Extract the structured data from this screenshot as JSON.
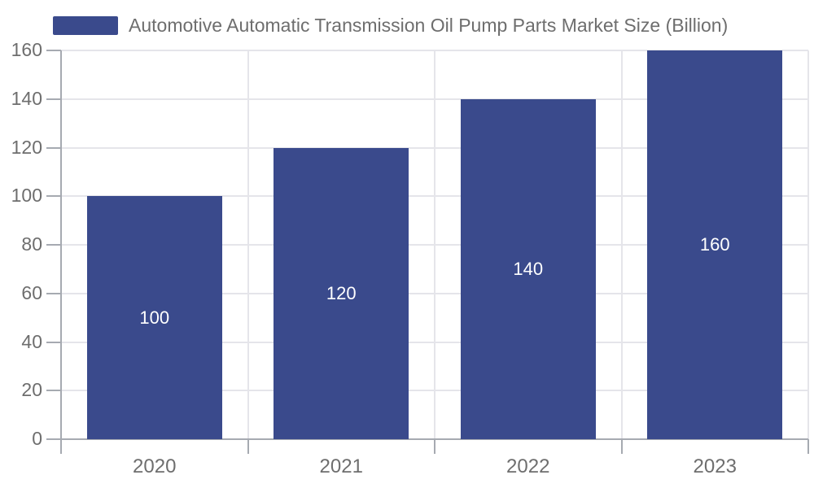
{
  "chart_data": {
    "type": "bar",
    "title": "",
    "categories": [
      "2020",
      "2021",
      "2022",
      "2023"
    ],
    "series": [
      {
        "name": "Automotive Automatic Transmission Oil Pump Parts Market Size (Billion)",
        "values": [
          100,
          120,
          140,
          160
        ]
      }
    ],
    "bar_value_labels": [
      "100",
      "120",
      "140",
      "160"
    ],
    "ylim": [
      0,
      160
    ],
    "yticks": [
      0,
      20,
      40,
      60,
      80,
      100,
      120,
      140,
      160
    ],
    "grid": true,
    "legend_position": "top-left",
    "colors": {
      "bar": "#3A4A8C",
      "bar_label_text": "#FFFFFF",
      "axis_line": "#A6AAB1",
      "grid_line": "#E5E5EA",
      "tick_text": "#6E6E6E",
      "legend_text": "#6E6E6E"
    }
  },
  "legend": {
    "label": "Automotive Automatic Transmission Oil Pump Parts Market Size (Billion)"
  }
}
